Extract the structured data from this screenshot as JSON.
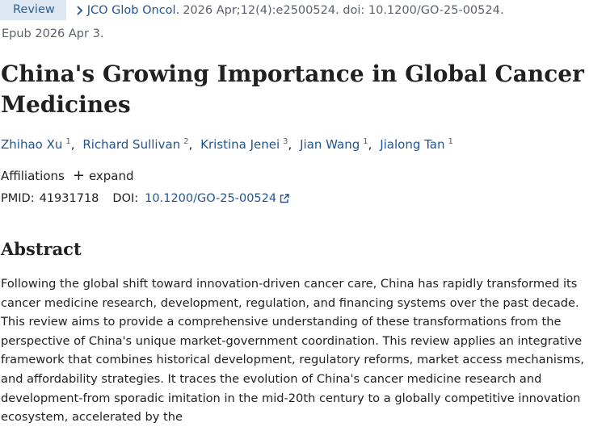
{
  "header": {
    "badge": "Review",
    "journal": "JCO Glob Oncol.",
    "citation": "2026 Apr;12(4):e2500524. doi: 10.1200/GO-25-00524.",
    "epub": "Epub 2026 Apr 3."
  },
  "article": {
    "title": "China's Growing Importance in Global Cancer Medicines",
    "authors": [
      {
        "name": "Zhihao Xu",
        "aff": "1"
      },
      {
        "name": "Richard Sullivan",
        "aff": "2"
      },
      {
        "name": "Kristina Jenei",
        "aff": "3"
      },
      {
        "name": "Jian Wang",
        "aff": "1"
      },
      {
        "name": "Jialong Tan",
        "aff": "1"
      }
    ],
    "author_separator": ",",
    "affiliations_label": "Affiliations",
    "expand_label": "expand",
    "pmid_label": "PMID:",
    "pmid": "41931718",
    "doi_label": "DOI:",
    "doi": "10.1200/GO-25-00524"
  },
  "abstract": {
    "heading": "Abstract",
    "text": "Following the global shift toward innovation-driven cancer care, China has rapidly transformed its cancer medicine research, development, regulation, and financing systems over the past decade. This review aims to provide a comprehensive understanding of these transformations from the perspective of China's unique market-government coordination. This review applies an integrative framework that combines historical development, regulatory reforms, market access mechanisms, and affordability strategies. It traces the evolution of China's cancer medicine research and development-from sporadic imitation in the mid-20th century to a globally competitive innovation ecosystem, accelerated by the"
  },
  "colors": {
    "link": "#205493",
    "badge_bg": "#dde7f2",
    "muted": "#5b616b",
    "text": "#212121"
  },
  "icons": [
    "chevron-right-icon",
    "plus-icon",
    "external-link-icon"
  ]
}
